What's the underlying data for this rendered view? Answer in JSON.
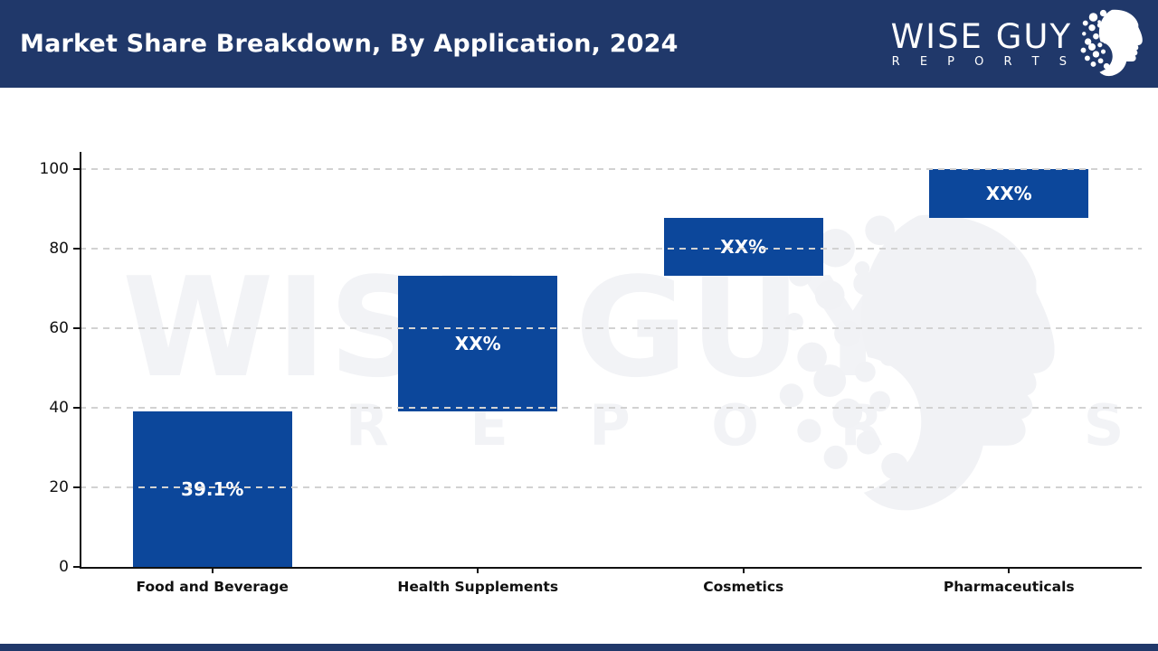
{
  "header": {
    "title": "Market Share Breakdown, By Application, 2024",
    "logo": {
      "line1": "WISE GUY",
      "line2": "R E P O R T S"
    }
  },
  "watermark": {
    "line1": "WISE GUY",
    "line2": "R E P O R T S"
  },
  "chart_data": {
    "type": "bar",
    "subtype": "waterfall",
    "title": "Market Share Breakdown, By Application, 2024",
    "categories": [
      "Food and Beverage",
      "Health Supplements",
      "Cosmetics",
      "Pharmaceuticals"
    ],
    "segments": [
      {
        "category": "Food and Beverage",
        "start": 0,
        "end": 39.1,
        "label": "39.1%"
      },
      {
        "category": "Health Supplements",
        "start": 39.1,
        "end": 73.2,
        "label": "XX%"
      },
      {
        "category": "Cosmetics",
        "start": 73.2,
        "end": 87.7,
        "label": "XX%"
      },
      {
        "category": "Pharmaceuticals",
        "start": 87.7,
        "end": 100,
        "label": "XX%"
      }
    ],
    "yticks": [
      0,
      20,
      40,
      60,
      80,
      100
    ],
    "ylim": [
      0,
      104.3
    ],
    "xlabel": "",
    "ylabel": "",
    "grid": "horizontal-dashed",
    "legend": "none",
    "colors": {
      "header_bg": "#20386a",
      "bar": "#0c479b",
      "grid": "#d2d2d2",
      "axis": "#111111",
      "watermark": "#f1f2f5",
      "label_on_bar": "#ffffff"
    }
  }
}
